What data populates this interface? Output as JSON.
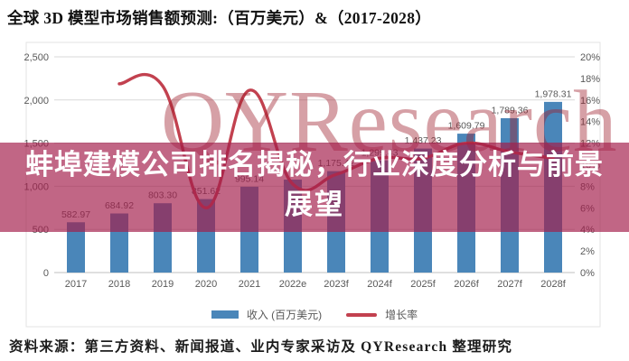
{
  "title": "全球 3D 模型市场销售额预测:（百万美元）&（2017-2028）",
  "watermark": "QYResearch",
  "watermark_color": "#a01e2d",
  "overlay": {
    "line1": "蚌埠建模公司排名揭秘，行业深度分析与前景",
    "line2": "展望",
    "color": "#a41e4b"
  },
  "legend": {
    "revenue": "收入 (百万美元)",
    "growth": "增长率"
  },
  "footer": "资料来源：第三方资料、新闻报道、业内专家采访及 QYResearch 整理研究",
  "chart_data": {
    "type": "bar",
    "title": "全球 3D 模型市场销售额预测:（百万美元）&（2017-2028）",
    "categories": [
      "2017",
      "2018",
      "2019",
      "2020",
      "2021",
      "2022e",
      "2023f",
      "2024f",
      "2025f",
      "2026f",
      "2027f",
      "2028f"
    ],
    "series": [
      {
        "name": "收入 (百万美元)",
        "type": "bar",
        "axis": "left",
        "color": "#4a86b9",
        "values": [
          582.97,
          684.92,
          803.3,
          851.62,
          995.14,
          1077,
          1175.42,
          1299.43,
          1437.23,
          1609.79,
          1789.36,
          1978.31
        ],
        "labels": [
          "582.97",
          "684.92",
          "803.30",
          "851.62",
          "995.14",
          "",
          "1,175.42",
          "1,299.43",
          "1,437.23",
          "1,609.79",
          "1,789.36",
          "1,978.31"
        ]
      },
      {
        "name": "增长率",
        "type": "line",
        "axis": "right",
        "color": "#c2414f",
        "values": [
          null,
          17.5,
          17.3,
          6.0,
          16.9,
          8.2,
          9.1,
          10.6,
          10.6,
          12.0,
          11.2,
          10.6
        ]
      }
    ],
    "left_axis": {
      "min": 0,
      "max": 2500,
      "ticks": [
        "2,500",
        "2,000",
        "1,500",
        "1,000",
        "500",
        "0"
      ]
    },
    "right_axis": {
      "min": 0,
      "max": 20,
      "ticks": [
        "20%",
        "18%",
        "16%",
        "14%",
        "12%",
        "10%",
        "8%",
        "6%",
        "4%",
        "2%",
        "0%"
      ]
    },
    "grid": true,
    "legend_position": "bottom"
  }
}
